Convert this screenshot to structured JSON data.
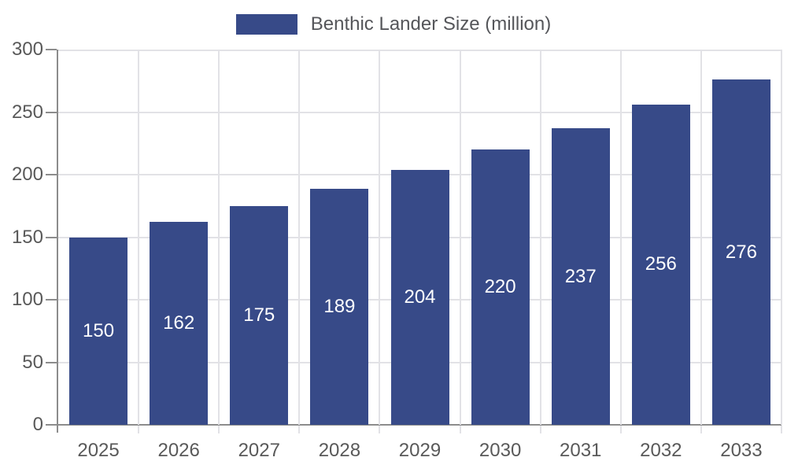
{
  "chart_data": {
    "type": "bar",
    "title": "",
    "series_label": "Benthic Lander Size (million)",
    "categories": [
      "2025",
      "2026",
      "2027",
      "2028",
      "2029",
      "2030",
      "2031",
      "2032",
      "2033"
    ],
    "values": [
      150,
      162,
      175,
      189,
      204,
      220,
      237,
      256,
      276
    ],
    "xlabel": "",
    "ylabel": "",
    "ylim": [
      0,
      300
    ],
    "yticks": [
      0,
      50,
      100,
      150,
      200,
      250,
      300
    ],
    "grid": true,
    "bar_labels_visible": true,
    "legend_position": "top-center",
    "colors": {
      "bar": "#374A88",
      "bar_label": "#FFFFFF",
      "axis_line": "#8C8C8C",
      "gridline": "#E2E2E6",
      "tick_text": "#595959",
      "legend_text": "#55565A"
    }
  }
}
